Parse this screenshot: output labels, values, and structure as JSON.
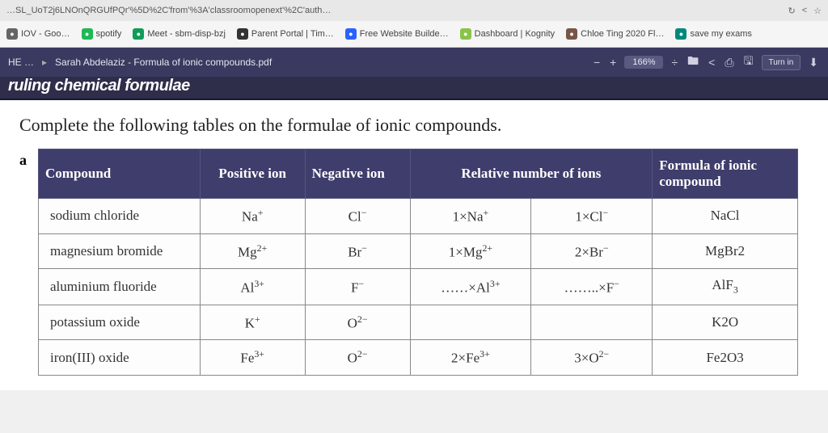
{
  "browser": {
    "url_text": "…SL_UoT2j6LNOnQRGUfPQr'%5D%2C'from'%3A'classroomopenext'%2C'auth…",
    "url_icons": [
      "↻",
      "<",
      "☆"
    ],
    "bookmarks": [
      {
        "label": "IOV - Goo…",
        "color": "#666"
      },
      {
        "label": "spotify",
        "color": "#1db954"
      },
      {
        "label": "Meet - sbm-disp-bzj",
        "color": "#0f9d58"
      },
      {
        "label": "Parent Portal | Tim…",
        "color": "#333"
      },
      {
        "label": "Free Website Builde…",
        "color": "#2962ff"
      },
      {
        "label": "Dashboard | Kognity",
        "color": "#8bc34a"
      },
      {
        "label": "Chloe Ting 2020 Fl…",
        "color": "#795548"
      },
      {
        "label": "save my exams",
        "color": "#00897b"
      }
    ]
  },
  "purple_bar": {
    "crumb_left": "HE …",
    "crumb_right": "Sarah Abdelaziz - Formula of ionic compounds.pdf",
    "minus": "−",
    "plus": "+",
    "zoom": "166%",
    "divider": "÷",
    "turn_in": "Turn in"
  },
  "title_strip": "ruling chemical formulae",
  "doc": {
    "instruction": "Complete the following tables on the formulae of ionic compounds.",
    "label": "a",
    "headers": {
      "compound": "Compound",
      "positive": "Positive ion",
      "negative": "Negative ion",
      "relative": "Relative number of ions",
      "formula": "Formula of ionic compound"
    },
    "rows": [
      {
        "compound": "sodium chloride",
        "pos": "Na<sup>+</sup>",
        "neg": "Cl<sup>−</sup>",
        "rel1": "1×Na<sup>+</sup>",
        "rel2": "1×Cl<sup>−</sup>",
        "formula": "NaCl",
        "hand": false
      },
      {
        "compound": "magnesium bromide",
        "pos": "Mg<sup>2+</sup>",
        "neg": "Br<sup>−</sup>",
        "rel1": "1×Mg<sup>2+</sup>",
        "rel2": "2×Br<sup>−</sup>",
        "formula": "MgBr2",
        "hand": true
      },
      {
        "compound": "aluminium fluoride",
        "pos": "Al<sup>3+</sup>",
        "neg": "F<sup>−</sup>",
        "rel1": "……×Al<sup>3+</sup>",
        "rel2": "……..×F<sup>−</sup>",
        "formula": "AlF<sub>3</sub>",
        "hand": false
      },
      {
        "compound": "potassium oxide",
        "pos": "K<sup>+</sup>",
        "neg": "O<sup>2−</sup>",
        "rel1": "",
        "rel2": "",
        "formula": "K2O",
        "hand": true
      },
      {
        "compound": "iron(III) oxide",
        "pos": "Fe<sup>3+</sup>",
        "neg": "O<sup>2−</sup>",
        "rel1": "2×Fe<sup>3+</sup>",
        "rel2": "3×O<sup>2−</sup>",
        "formula": "Fe2O3",
        "hand": true
      }
    ],
    "col_widths": [
      "200px",
      "130px",
      "130px",
      "150px",
      "150px",
      "180px"
    ]
  }
}
